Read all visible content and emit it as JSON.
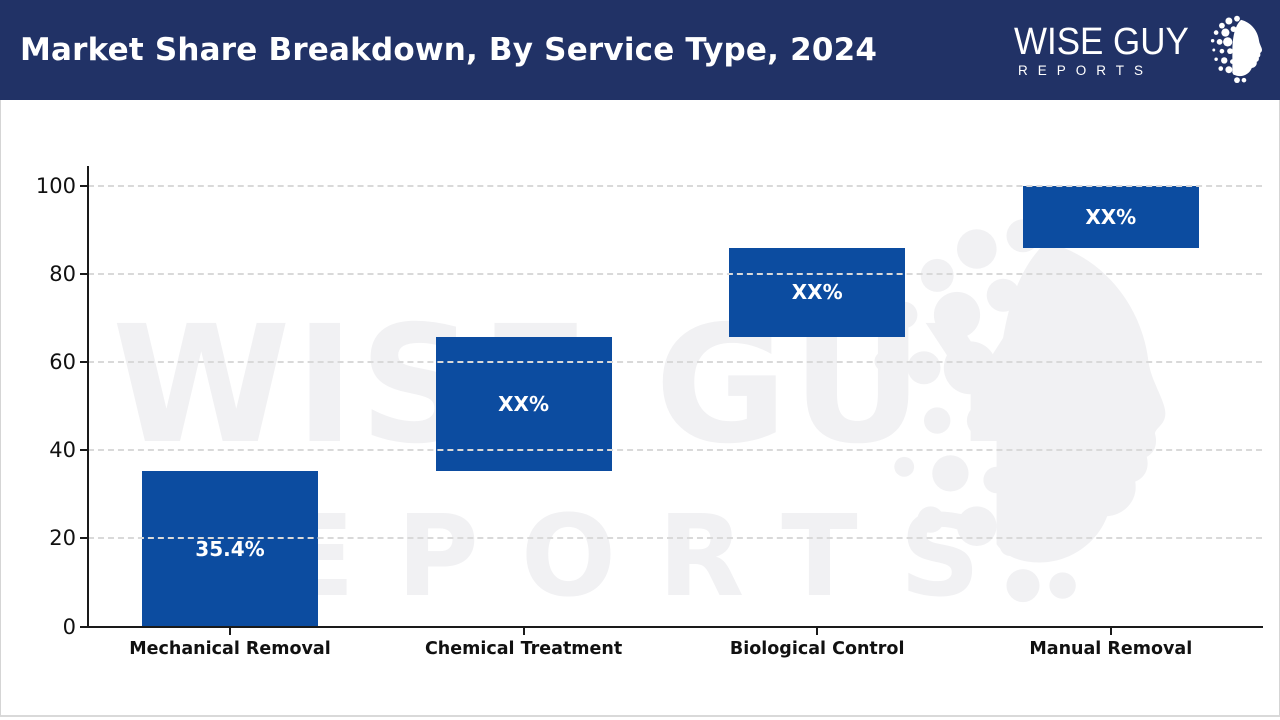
{
  "header": {
    "title": "Market Share Breakdown, By Service Type, 2024",
    "logo": {
      "name": "WISE GUY",
      "sub": "REPORTS"
    }
  },
  "watermark": {
    "name": "WISE GUY",
    "sub": "REPORTS"
  },
  "colors": {
    "header_bg": "#213266",
    "bar": "#0c4ca0",
    "grid": "#d9d9d9",
    "axis": "#1a1a1a",
    "bar_label": "#ffffff",
    "watermark": "#f1f1f3"
  },
  "chart_data": {
    "type": "bar",
    "subtype": "waterfall-floating-bars",
    "title": "Market Share Breakdown, By Service Type, 2024",
    "categories": [
      "Mechanical Removal",
      "Chemical Treatment",
      "Biological Control",
      "Manual Removal"
    ],
    "segments": [
      {
        "category": "Mechanical Removal",
        "start": 0,
        "end": 35.4,
        "value": 35.4,
        "label": "35.4%"
      },
      {
        "category": "Chemical Treatment",
        "start": 35.4,
        "end": 65.8,
        "value": 30.4,
        "label": "XX%"
      },
      {
        "category": "Biological Control",
        "start": 65.8,
        "end": 86.0,
        "value": 20.2,
        "label": "XX%"
      },
      {
        "category": "Manual Removal",
        "start": 86.0,
        "end": 100.0,
        "value": 14.0,
        "label": "XX%"
      }
    ],
    "xlabel": "",
    "ylabel": "",
    "ylim": [
      0,
      104
    ],
    "yticks": [
      0,
      20,
      40,
      60,
      80,
      100
    ],
    "grid": "horizontal-dashed",
    "legend": "none"
  }
}
